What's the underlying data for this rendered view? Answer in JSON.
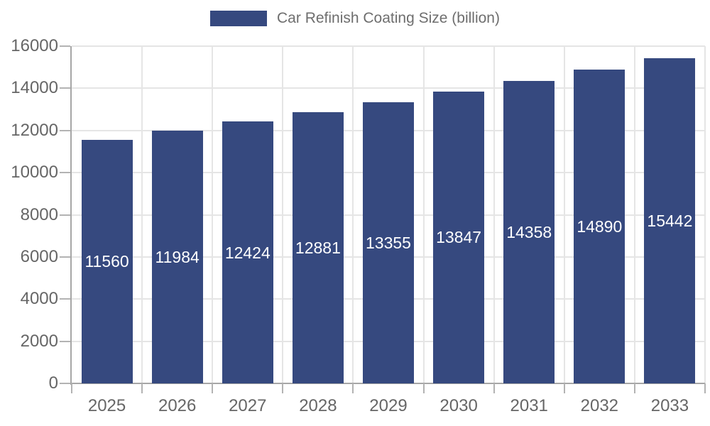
{
  "chart_data": {
    "type": "bar",
    "title": "Car Refinish Coating Size (billion)",
    "categories": [
      "2025",
      "2026",
      "2027",
      "2028",
      "2029",
      "2030",
      "2031",
      "2032",
      "2033"
    ],
    "values": [
      11560,
      11984,
      12424,
      12881,
      13355,
      13847,
      14358,
      14890,
      15442
    ],
    "series": [
      {
        "name": "Car Refinish Coating Size (billion)",
        "values": [
          11560,
          11984,
          12424,
          12881,
          13355,
          13847,
          14358,
          14890,
          15442
        ]
      }
    ],
    "xlabel": "",
    "ylabel": "",
    "ylim": [
      0,
      16000
    ],
    "y_ticks": [
      0,
      2000,
      4000,
      6000,
      8000,
      10000,
      12000,
      14000,
      16000
    ],
    "grid": true,
    "value_labels": "inside-center",
    "legend_position": "top-center",
    "colors": {
      "bar": "#36497F",
      "grid": "#E5E5E5",
      "axis": "#A6A6A6",
      "tick": "#B3B3B3",
      "tick_label": "#666666",
      "legend_text": "#6E6E6E",
      "value_label": "#FFFFFF",
      "background": "#FFFFFF"
    }
  }
}
